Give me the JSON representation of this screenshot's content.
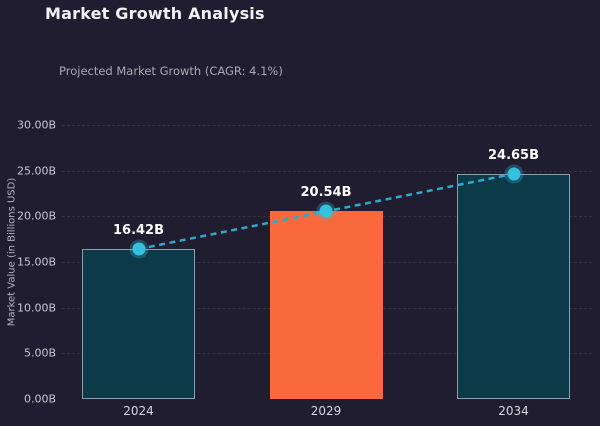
{
  "chart_data": {
    "type": "bar",
    "title": "Market Growth Analysis",
    "subtitle": "Projected Market Growth (CAGR: 4.1%)",
    "ylabel": "Market Value (in Billions USD)",
    "xlabel": "",
    "categories": [
      "2024",
      "2029",
      "2034"
    ],
    "values": [
      16.42,
      20.54,
      24.65
    ],
    "value_labels": [
      "16.42B",
      "20.54B",
      "24.65B"
    ],
    "bar_colors": [
      "#0d3a49",
      "#f9693c",
      "#0d3a49"
    ],
    "bar_border_colors": [
      "#8aa0ae",
      "#f9693c",
      "#8aa0ae"
    ],
    "ylim": [
      0,
      30
    ],
    "yticks": [
      {
        "value": 0,
        "label": "0.00B"
      },
      {
        "value": 5,
        "label": "5.00B"
      },
      {
        "value": 10,
        "label": "10.00B"
      },
      {
        "value": 15,
        "label": "15.00B"
      },
      {
        "value": 20,
        "label": "20.00B"
      },
      {
        "value": 25,
        "label": "25.00B"
      },
      {
        "value": 30,
        "label": "30.00B"
      }
    ],
    "grid": "horizontal-dashed",
    "legend": "none",
    "trend_line": {
      "style": "dashed",
      "color": "#2fa9c9",
      "marker": "circle",
      "marker_color": "#35c0dd"
    },
    "colors": {
      "background": "#201d30",
      "gridline": "#343144",
      "title_text": "#f2f2f5",
      "subtitle_text": "#a9a9b4",
      "tick_text": "#c6c6d0",
      "value_label_text": "#ffffff"
    }
  }
}
